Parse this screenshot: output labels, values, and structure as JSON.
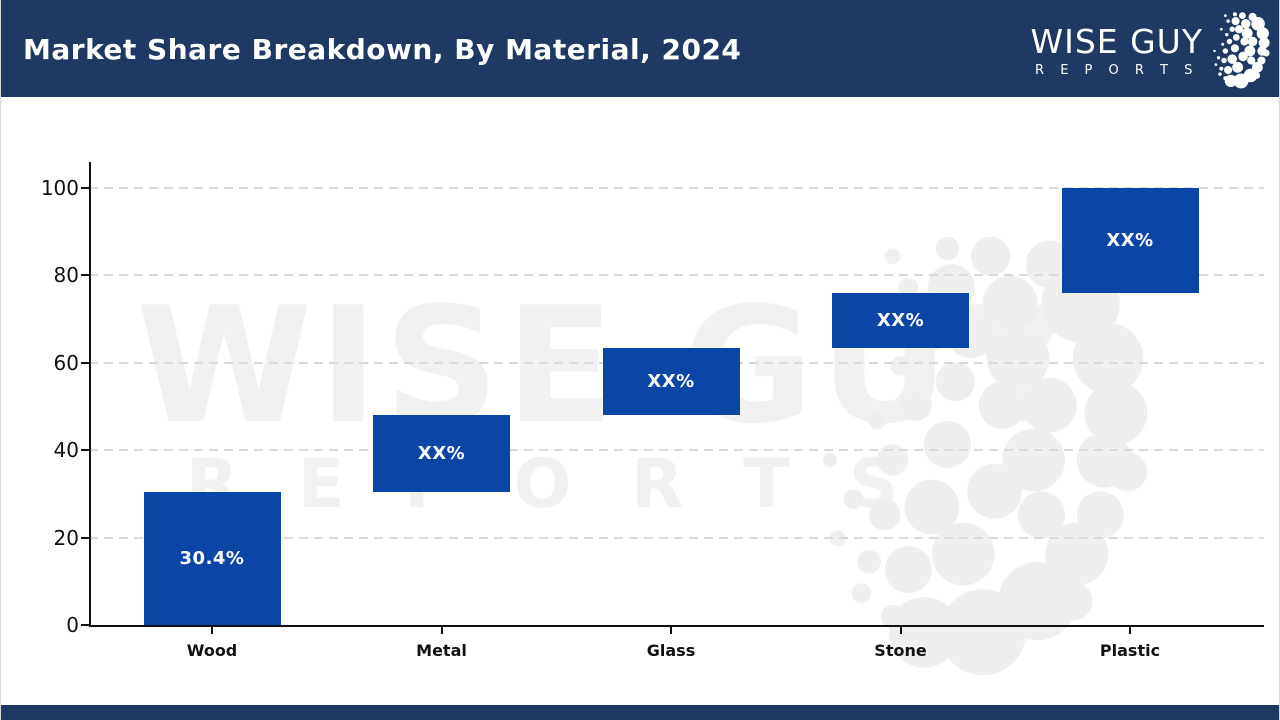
{
  "header": {
    "title": "Market Share Breakdown, By Material, 2024",
    "brand": {
      "line1": "WISE GUY",
      "line2": "R E P O R T S",
      "logo_icon": "dotted-face-profile-icon"
    }
  },
  "watermark": {
    "line1": "WISE GUY",
    "line2": "R E P O R T S",
    "face_icon": "dotted-face-profile-icon"
  },
  "colors": {
    "header_bg": "#1f3864",
    "footer_bg": "#1f3864",
    "bar": "#0b45a5",
    "bar_label": "#ffffff",
    "grid": "#d9d9d9",
    "axis": "#111111",
    "watermark": "#f1f1f1"
  },
  "chart_data": {
    "type": "bar",
    "variant": "waterfall",
    "title": "Market Share Breakdown, By Material, 2024",
    "categories": [
      "Wood",
      "Metal",
      "Glass",
      "Stone",
      "Plastic"
    ],
    "segments": [
      {
        "category": "Wood",
        "start": 0,
        "end": 30.4,
        "label": "30.4%"
      },
      {
        "category": "Metal",
        "start": 30.4,
        "end": 48.0,
        "label": "XX%"
      },
      {
        "category": "Glass",
        "start": 48.0,
        "end": 63.3,
        "label": "XX%"
      },
      {
        "category": "Stone",
        "start": 63.3,
        "end": 75.8,
        "label": "XX%"
      },
      {
        "category": "Plastic",
        "start": 75.8,
        "end": 100,
        "label": "XX%"
      }
    ],
    "ylim": [
      0,
      100
    ],
    "yticks": [
      0,
      20,
      40,
      60,
      80,
      100
    ],
    "xlabel": "",
    "ylabel": "",
    "grid": "horizontal-dashed",
    "legend": "none"
  }
}
